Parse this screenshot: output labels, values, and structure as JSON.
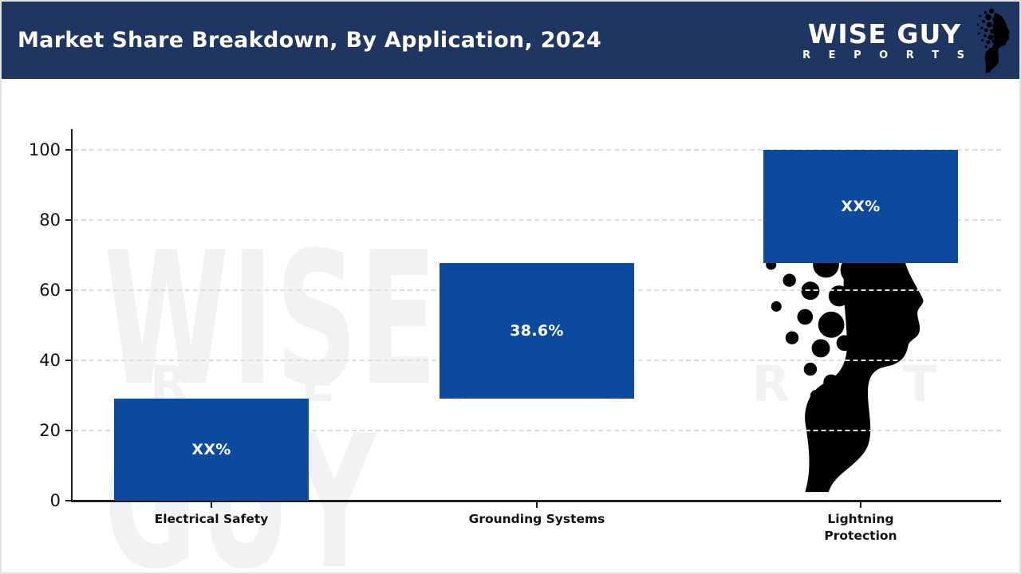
{
  "header": {
    "title": "Market Share Breakdown, By Application, 2024",
    "brand": {
      "line1": "WISE GUY",
      "line2": "R E P O R T S"
    }
  },
  "watermark": {
    "line1": "WISE GUY",
    "line2": "R E P O R T S"
  },
  "colors": {
    "header_bg": "#1f3562",
    "bar": "#0b4a9f",
    "bar_label": "#ffffff",
    "grid": "#dedede",
    "axis": "#1f1f1f",
    "watermark": "#f2f2f4"
  },
  "chart_data": {
    "type": "bar",
    "subtype": "floating-range bars (waterfall-style market share breakdown)",
    "title": "Market Share Breakdown, By Application, 2024",
    "categories": [
      "Electrical Safety",
      "Grounding Systems",
      "Lightning Protection"
    ],
    "categories_display": [
      "Electrical Safety",
      "Grounding Systems",
      "Lightning\nProtection"
    ],
    "series": [
      {
        "name": "Market share (%)",
        "segments": [
          {
            "category": "Electrical Safety",
            "start": 0,
            "end": 29,
            "label": "XX%"
          },
          {
            "category": "Grounding Systems",
            "start": 29,
            "end": 67.6,
            "label": "38.6%"
          },
          {
            "category": "Lightning Protection",
            "start": 67.6,
            "end": 100,
            "label": "XX%"
          }
        ]
      }
    ],
    "xlabel": "",
    "ylabel": "",
    "ylim": [
      0,
      100
    ],
    "yticks": [
      0,
      20,
      40,
      60,
      80,
      100
    ],
    "grid": "horizontal dashed",
    "legend": "none"
  }
}
